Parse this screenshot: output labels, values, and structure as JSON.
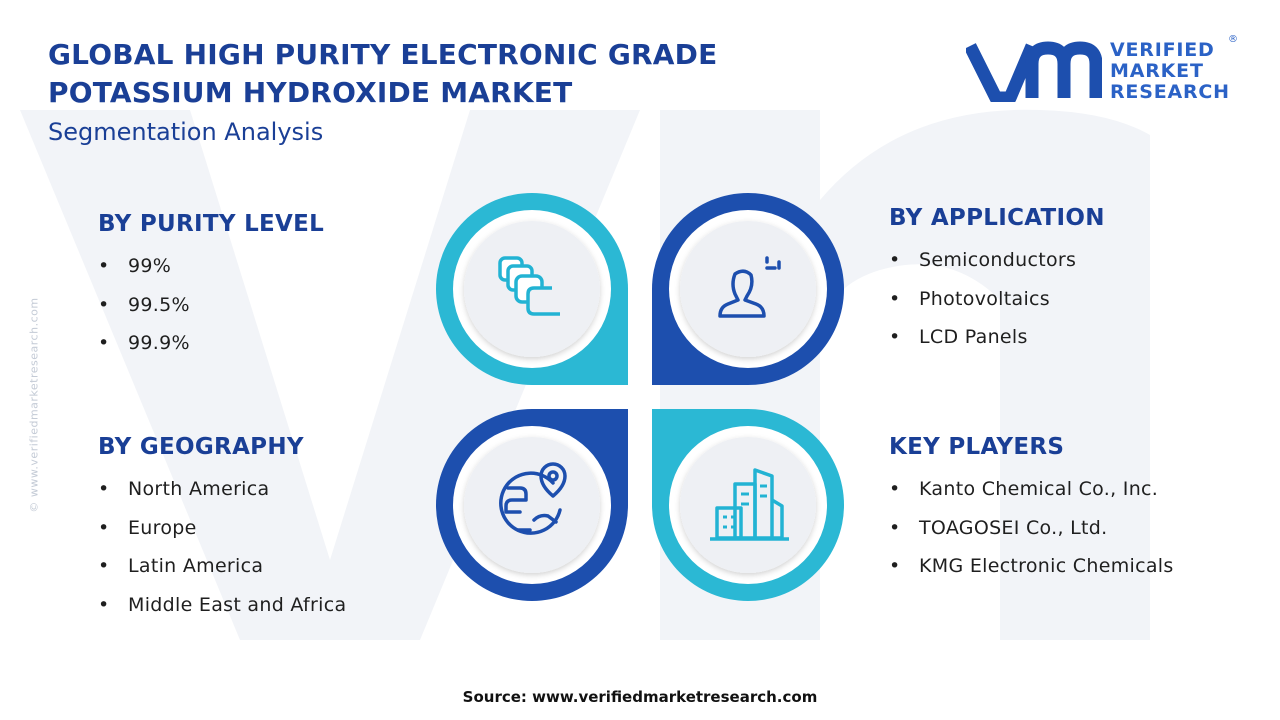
{
  "header": {
    "title_line1": "GLOBAL HIGH PURITY ELECTRONIC GRADE",
    "title_line2": "POTASSIUM HYDROXIDE MARKET",
    "subtitle": "Segmentation Analysis"
  },
  "logo": {
    "line1": "VERIFIED",
    "line2": "MARKET",
    "line3": "RESEARCH",
    "registered": "®"
  },
  "side_watermark": "© www.verifiedmarketresearch.com",
  "segments": {
    "purity": {
      "title": "BY PURITY LEVEL",
      "items": [
        "99%",
        "99.5%",
        "99.9%"
      ],
      "icon": "layers-icon"
    },
    "application": {
      "title": "BY APPLICATION",
      "items": [
        "Semiconductors",
        "Photovoltaics",
        "LCD Panels"
      ],
      "icon": "user-ai-icon"
    },
    "geography": {
      "title": "BY GEOGRAPHY",
      "items": [
        "North America",
        "Europe",
        "Latin America",
        "Middle East and Africa"
      ],
      "icon": "globe-pin-icon"
    },
    "players": {
      "title": "KEY PLAYERS",
      "items": [
        "Kanto Chemical Co., Inc.",
        "TOAGOSEI Co., Ltd.",
        "KMG Electronic Chemicals"
      ],
      "icon": "buildings-icon"
    }
  },
  "colors": {
    "navy": "#1a3f96",
    "petal_dark": "#1d4fae",
    "petal_light": "#2bb8d4",
    "icon_dark": "#1d4fae",
    "icon_light": "#22b3d3",
    "inner_circle": "#eef0f4"
  },
  "footer": {
    "source": "Source: www.verifiedmarketresearch.com"
  }
}
